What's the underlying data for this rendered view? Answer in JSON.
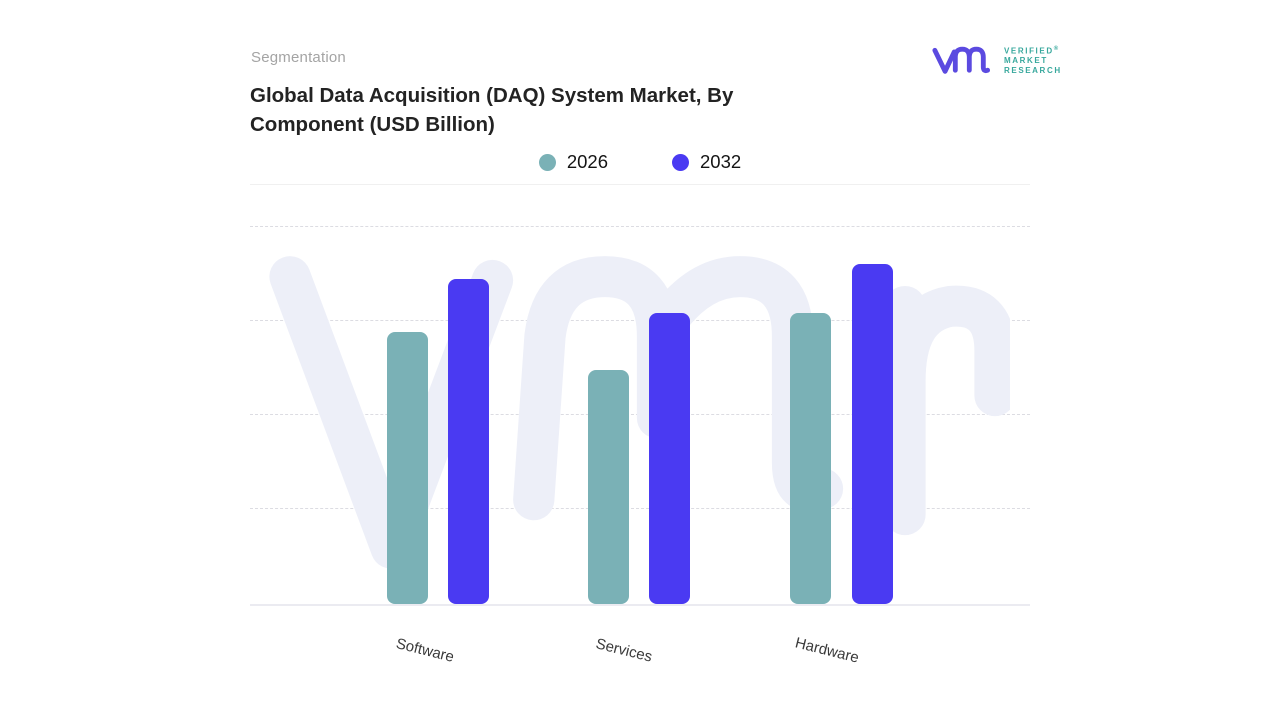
{
  "eyebrow": "Segmentation",
  "title": {
    "line1": "Global Data Acquisition (DAQ) System Market, By",
    "line2": "Component (USD Billion)"
  },
  "logo": {
    "brand_line1": "VERIFIED",
    "brand_line2": "MARKET",
    "brand_line3": "RESEARCH",
    "registered_mark": "®",
    "mark_color": "#5b4ae0",
    "text_color": "#38a89d"
  },
  "colors": {
    "series_2026": "#7ab1b6",
    "series_2032": "#4a3af2",
    "watermark": "#edeff8",
    "gridline": "#dcdce2",
    "background": "#ffffff"
  },
  "chart_data": {
    "type": "bar",
    "title": "Global Data Acquisition (DAQ) System Market, By Component (USD Billion)",
    "categories": [
      "Software",
      "Services",
      "Hardware"
    ],
    "series": [
      {
        "name": "2026",
        "color": "#7ab1b6",
        "values": [
          0.72,
          0.62,
          0.77
        ]
      },
      {
        "name": "2032",
        "color": "#4a3af2",
        "values": [
          0.86,
          0.77,
          0.9
        ]
      }
    ],
    "ylabel": "",
    "xlabel": "",
    "ylim": [
      0,
      1
    ],
    "value_note": "y-axis has no tick labels; values are estimated fractions of full plot height read from gridlines",
    "grid": "horizontal dashed lines, no vertical axis labels",
    "legend_position": "top-center",
    "watermark": "vmr-monogram"
  }
}
